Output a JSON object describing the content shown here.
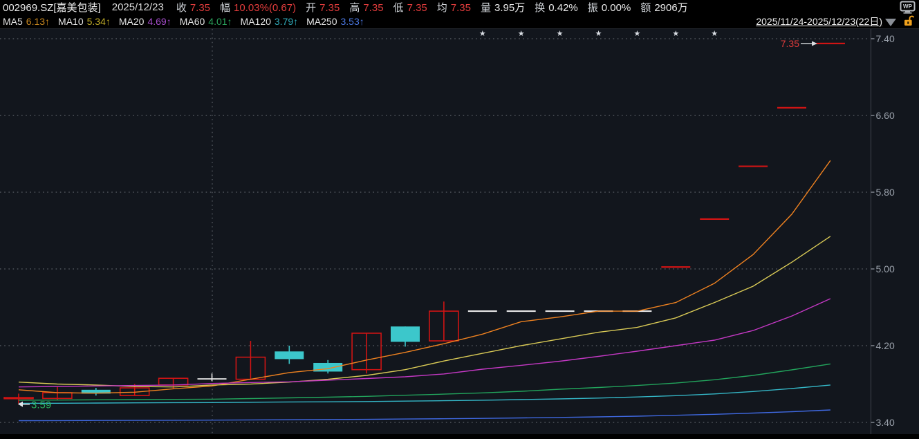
{
  "quote_bar": {
    "symbol": "002969.SZ[嘉美包装]",
    "date": "2025/12/23",
    "fields": [
      {
        "label": "收",
        "value": "7.35",
        "color": "red"
      },
      {
        "label": "幅",
        "value": "10.03%(0.67)",
        "color": "red"
      },
      {
        "label": "开",
        "value": "7.35",
        "color": "red"
      },
      {
        "label": "高",
        "value": "7.35",
        "color": "red"
      },
      {
        "label": "低",
        "value": "7.35",
        "color": "red"
      },
      {
        "label": "均",
        "value": "7.35",
        "color": "red"
      },
      {
        "label": "量",
        "value": "3.95万",
        "color": "white"
      },
      {
        "label": "换",
        "value": "0.42%",
        "color": "white"
      },
      {
        "label": "振",
        "value": "0.00%",
        "color": "white"
      },
      {
        "label": "额",
        "value": "2906万",
        "color": "white"
      }
    ],
    "wp_icon_text": "WP"
  },
  "ma_bar": {
    "items": [
      {
        "label": "MA5",
        "value": "6.13",
        "arrow": "↑",
        "color": "#c9881f"
      },
      {
        "label": "MA10",
        "value": "5.34",
        "arrow": "↑",
        "color": "#c0ac28"
      },
      {
        "label": "MA20",
        "value": "4.69",
        "arrow": "↑",
        "color": "#a94fd1"
      },
      {
        "label": "MA60",
        "value": "4.01",
        "arrow": "↑",
        "color": "#2aa35c"
      },
      {
        "label": "MA120",
        "value": "3.79",
        "arrow": "↑",
        "color": "#2fa9b8"
      },
      {
        "label": "MA250",
        "value": "3.53",
        "arrow": "↑",
        "color": "#4a77e0"
      }
    ],
    "range_label": "2025/11/24-2025/12/23(22日)"
  },
  "markers": {
    "low_label": "3.59",
    "last_price_label": "7.35"
  },
  "chart_data": {
    "type": "candlestick",
    "title": "002969.SZ 嘉美包装 日K",
    "x_range_label": "2025/11/24-2025/12/23(22日)",
    "ylim": [
      3.4,
      7.4
    ],
    "y_ticks": [
      "7.40",
      "6.60",
      "5.80",
      "5.00",
      "4.20",
      "3.40"
    ],
    "y_tick_values": [
      7.4,
      6.6,
      5.8,
      5.0,
      4.2,
      3.4
    ],
    "grid": "dotted",
    "colors": {
      "up": "#d01414",
      "down": "#3cc7cb",
      "flat": "#e8e8e8",
      "ma5": "#ef8220",
      "ma10": "#d9ca56",
      "ma20": "#c438c4",
      "ma60": "#22a45c",
      "ma120": "#34b6c6",
      "ma250": "#3f68e0",
      "bg": "#12161d",
      "grid": "#50555c",
      "axis": "#41464e",
      "axis_text": "#9aa1ab",
      "low_marker": "#2cb560",
      "last_marker": "#e23c3c",
      "star": "#d9dde3"
    },
    "candles": [
      {
        "o": 3.66,
        "h": 3.7,
        "l": 3.59,
        "c": 3.66,
        "color": "red"
      },
      {
        "o": 3.65,
        "h": 3.77,
        "l": 3.63,
        "c": 3.71,
        "color": "red"
      },
      {
        "o": 3.74,
        "h": 3.76,
        "l": 3.68,
        "c": 3.7,
        "color": "cyan"
      },
      {
        "o": 3.68,
        "h": 3.8,
        "l": 3.68,
        "c": 3.76,
        "color": "red"
      },
      {
        "o": 3.79,
        "h": 3.86,
        "l": 3.75,
        "c": 3.86,
        "color": "red"
      },
      {
        "o": 3.86,
        "h": 3.91,
        "l": 3.83,
        "c": 3.86,
        "color": "white"
      },
      {
        "o": 3.85,
        "h": 4.25,
        "l": 3.85,
        "c": 4.08,
        "color": "red"
      },
      {
        "o": 4.14,
        "h": 4.2,
        "l": 4.01,
        "c": 4.06,
        "color": "cyan"
      },
      {
        "o": 4.02,
        "h": 4.05,
        "l": 3.91,
        "c": 3.93,
        "color": "cyan"
      },
      {
        "o": 3.95,
        "h": 4.33,
        "l": 3.91,
        "c": 4.33,
        "color": "red"
      },
      {
        "o": 4.4,
        "h": 4.4,
        "l": 4.19,
        "c": 4.24,
        "color": "cyan"
      },
      {
        "o": 4.25,
        "h": 4.66,
        "l": 4.25,
        "c": 4.56,
        "color": "red"
      },
      {
        "o": 4.56,
        "h": 4.56,
        "l": 4.56,
        "c": 4.56,
        "color": "white"
      },
      {
        "o": 4.56,
        "h": 4.56,
        "l": 4.56,
        "c": 4.56,
        "color": "white"
      },
      {
        "o": 4.56,
        "h": 4.56,
        "l": 4.56,
        "c": 4.56,
        "color": "white"
      },
      {
        "o": 4.56,
        "h": 4.56,
        "l": 4.56,
        "c": 4.56,
        "color": "white"
      },
      {
        "o": 4.56,
        "h": 4.56,
        "l": 4.56,
        "c": 4.56,
        "color": "white"
      },
      {
        "o": 5.02,
        "h": 5.02,
        "l": 5.02,
        "c": 5.02,
        "color": "red"
      },
      {
        "o": 5.52,
        "h": 5.52,
        "l": 5.52,
        "c": 5.52,
        "color": "red"
      },
      {
        "o": 6.07,
        "h": 6.07,
        "l": 6.07,
        "c": 6.07,
        "color": "red"
      },
      {
        "o": 6.68,
        "h": 6.68,
        "l": 6.68,
        "c": 6.68,
        "color": "red"
      },
      {
        "o": 7.35,
        "h": 7.35,
        "l": 7.35,
        "c": 7.35,
        "color": "red"
      }
    ],
    "star_marker_indices": [
      12,
      13,
      14,
      15,
      16,
      17,
      18
    ],
    "series": [
      {
        "name": "MA5",
        "values": [
          3.74,
          3.71,
          3.705,
          3.715,
          3.75,
          3.78,
          3.85,
          3.92,
          3.96,
          4.05,
          4.13,
          4.22,
          4.32,
          4.45,
          4.5,
          4.56,
          4.56,
          4.65,
          4.85,
          5.15,
          5.57,
          6.13
        ]
      },
      {
        "name": "MA10",
        "values": [
          3.82,
          3.8,
          3.79,
          3.775,
          3.77,
          3.79,
          3.8,
          3.82,
          3.85,
          3.89,
          3.95,
          4.04,
          4.12,
          4.2,
          4.27,
          4.34,
          4.39,
          4.49,
          4.65,
          4.82,
          5.07,
          5.34
        ]
      },
      {
        "name": "MA20",
        "values": [
          3.77,
          3.775,
          3.78,
          3.785,
          3.79,
          3.806,
          3.816,
          3.823,
          3.84,
          3.858,
          3.876,
          3.905,
          3.955,
          3.995,
          4.038,
          4.088,
          4.142,
          4.2,
          4.258,
          4.358,
          4.509,
          4.69
        ]
      },
      {
        "name": "MA60",
        "values": [
          3.631,
          3.633,
          3.636,
          3.638,
          3.64,
          3.642,
          3.649,
          3.656,
          3.663,
          3.672,
          3.683,
          3.695,
          3.708,
          3.724,
          3.746,
          3.764,
          3.785,
          3.81,
          3.845,
          3.89,
          3.948,
          4.01
        ]
      },
      {
        "name": "MA120",
        "values": [
          3.598,
          3.6,
          3.602,
          3.604,
          3.606,
          3.607,
          3.61,
          3.613,
          3.615,
          3.618,
          3.622,
          3.626,
          3.631,
          3.638,
          3.645,
          3.654,
          3.665,
          3.679,
          3.697,
          3.722,
          3.753,
          3.79
        ]
      },
      {
        "name": "MA250",
        "values": [
          3.418,
          3.419,
          3.42,
          3.421,
          3.422,
          3.424,
          3.426,
          3.428,
          3.43,
          3.432,
          3.435,
          3.438,
          3.442,
          3.447,
          3.452,
          3.458,
          3.465,
          3.474,
          3.484,
          3.497,
          3.512,
          3.53
        ]
      }
    ],
    "low_marker": {
      "price": 3.59,
      "candle_index": 0,
      "label": "3.59"
    },
    "last_marker": {
      "price": 7.35,
      "candle_index": 21,
      "label": "7.35"
    },
    "month_separator_x_index": 5
  }
}
